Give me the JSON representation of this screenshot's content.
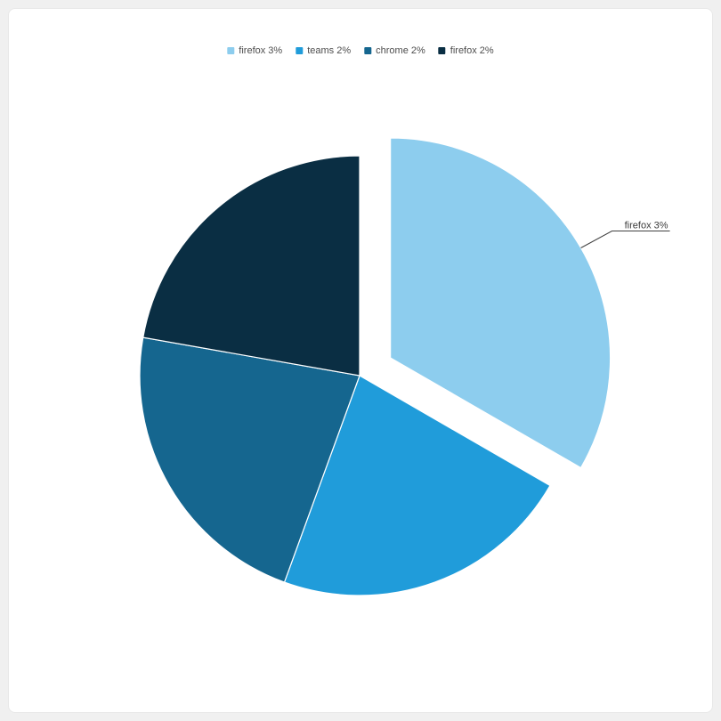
{
  "page": {
    "background_color": "#f0f0f0",
    "card_background_color": "#ffffff"
  },
  "chart_data": {
    "type": "pie",
    "title": "",
    "legend_position": "top",
    "start_angle_deg": 0,
    "direction": "clockwise",
    "value_unit": "%",
    "slices": [
      {
        "name": "firefox",
        "legend_label": "firefox 3%",
        "value": 3,
        "color": "#8dcdee",
        "exploded": true
      },
      {
        "name": "teams",
        "legend_label": "teams 2%",
        "value": 2,
        "color": "#209cda",
        "exploded": false
      },
      {
        "name": "chrome",
        "legend_label": "chrome 2%",
        "value": 2,
        "color": "#15668f",
        "exploded": false
      },
      {
        "name": "firefox",
        "legend_label": "firefox 2%",
        "value": 2,
        "color": "#0a2e43",
        "exploded": false
      }
    ],
    "callout": {
      "text": "firefox 3%",
      "slice_index": 0
    }
  }
}
